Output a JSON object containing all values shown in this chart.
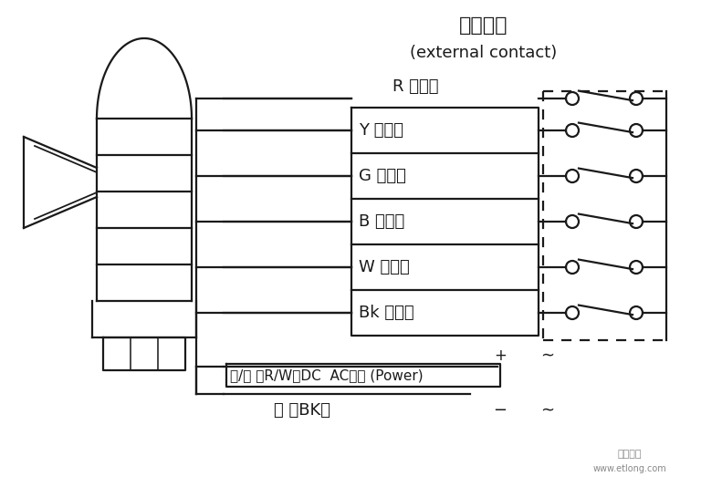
{
  "title": "外部接点",
  "subtitle": "(external contact)",
  "bg_color": "#ffffff",
  "line_color": "#1a1a1a",
  "rows_in_box": [
    "Y （黄）",
    "G （绿）",
    "B （蓝）",
    "W （白）",
    "Bk （黑）"
  ],
  "row_R": "R （红）",
  "label_rw": "红/白 （R/W）DC  AC电源 (Power)",
  "label_bk": "黑 （BK）",
  "watermark_line1": "易龙商网",
  "watermark_line2": "www.etlong.com"
}
